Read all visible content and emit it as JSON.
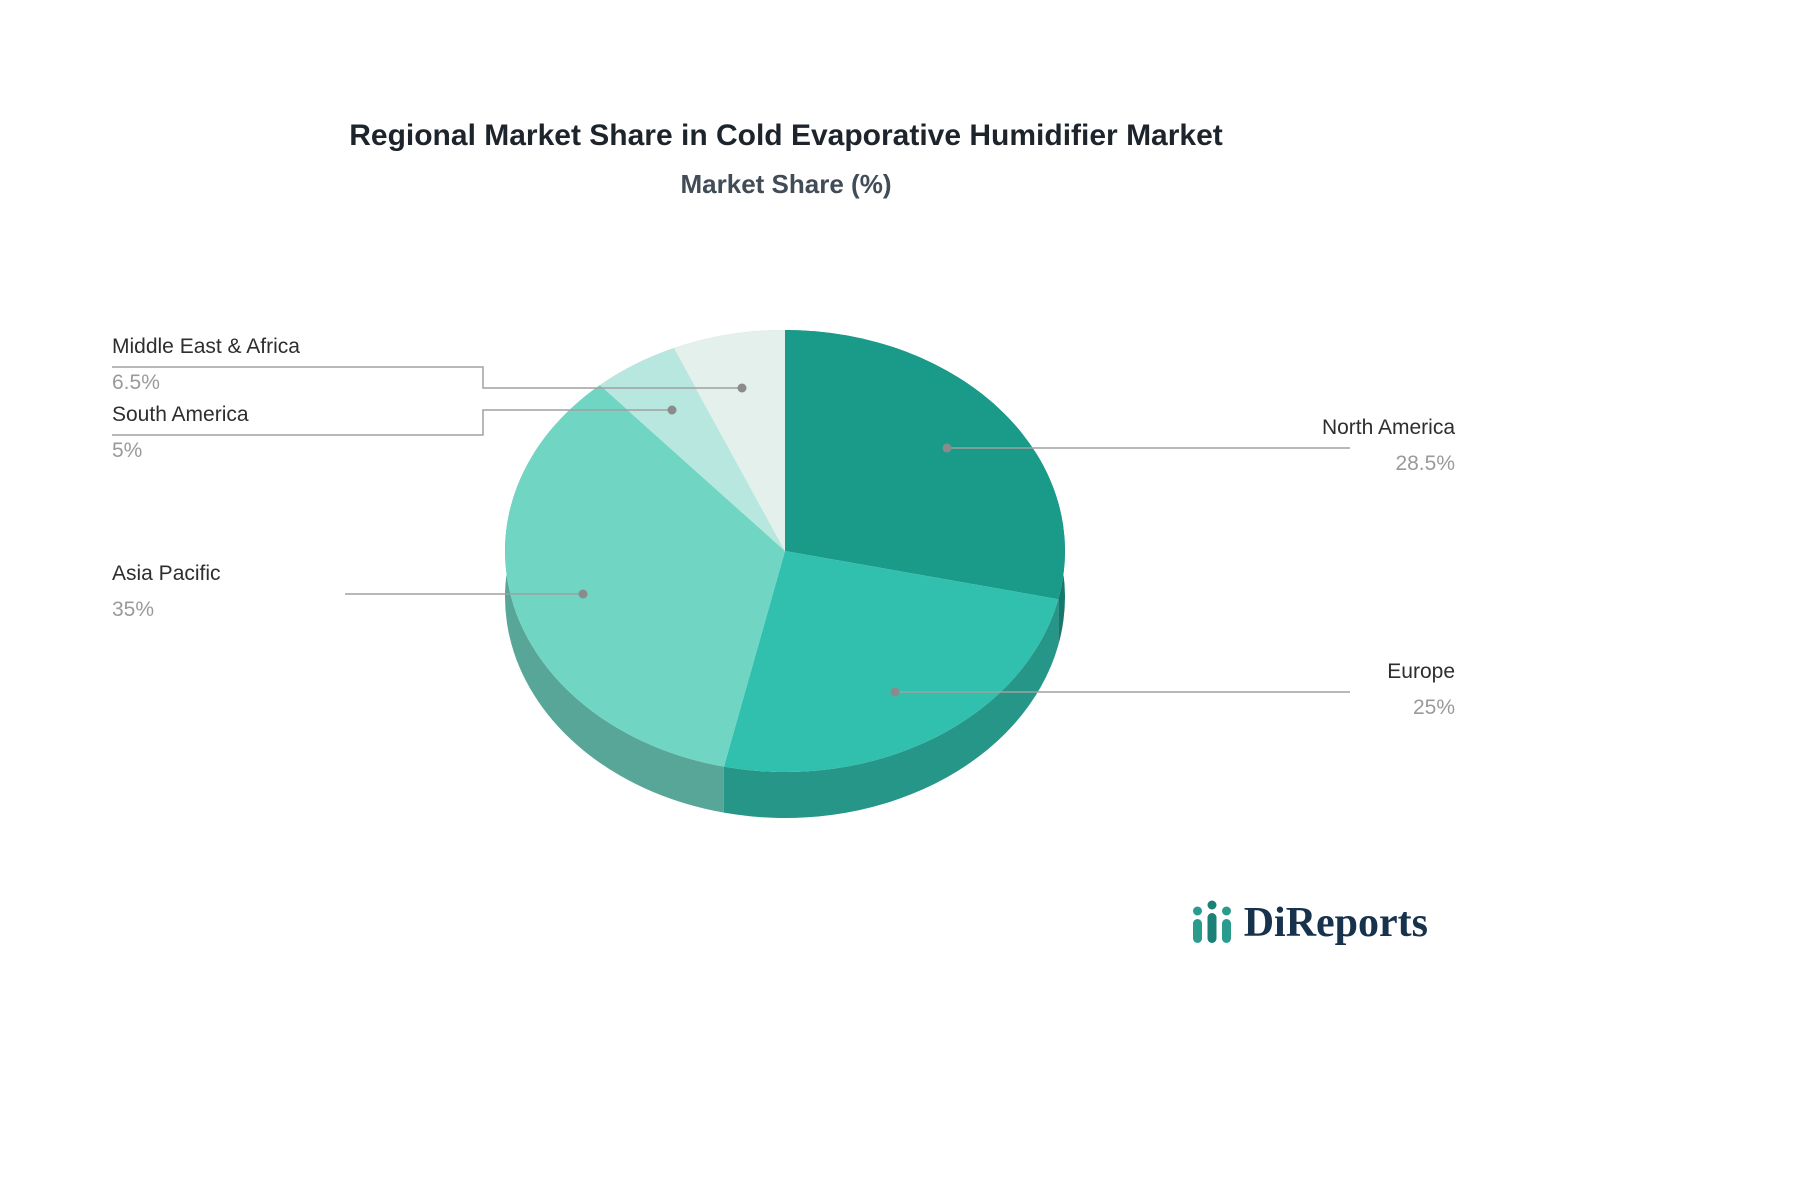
{
  "chart_data": {
    "type": "pie",
    "title": "Regional Market Share in Cold Evaporative Humidifier Market",
    "subtitle": "Market Share (%)",
    "unit": "%",
    "style": "3d",
    "direction": "clockwise",
    "start_angle": "12-oclock",
    "legend": "none (callout labels with leader lines)",
    "slices": [
      {
        "label": "North America",
        "value": 28.5,
        "display": "28.5%",
        "color": "#1a9b8a"
      },
      {
        "label": "Europe",
        "value": 25,
        "display": "25%",
        "color": "#30c0ad"
      },
      {
        "label": "Asia Pacific",
        "value": 35,
        "display": "35%",
        "color": "#70d5c2"
      },
      {
        "label": "South America",
        "value": 5,
        "display": "5%",
        "color": "#b7e7de"
      },
      {
        "label": "Middle East & Africa",
        "value": 6.5,
        "display": "6.5%",
        "color": "#e3f0ec"
      }
    ],
    "callout_line_color": "#a0a0a0",
    "callout_dot_color": "#8b8b8b",
    "label_color": "#2e2e2e",
    "value_color": "#9a9a9a"
  },
  "logo": {
    "text": "DiReports",
    "icon": "bar-chart-icon",
    "icon_color": "#2a9c8e",
    "text_color": "#17324d"
  }
}
